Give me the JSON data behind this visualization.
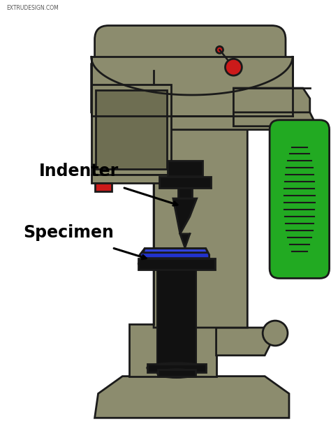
{
  "background_color": "#ffffff",
  "mc": "#8c8c6e",
  "mc2": "#7a7a5a",
  "mo": "#1a1a1a",
  "black": "#111111",
  "black2": "#2a2a2a",
  "red": "#cc1a1a",
  "green": "#1a8c1a",
  "green2": "#22aa22",
  "blue": "#2233cc",
  "blue2": "#3344dd",
  "indenter_label": "Indenter",
  "specimen_label": "Specimen",
  "watermark": "EXTRUDESIGN.COM",
  "lfs": 17
}
